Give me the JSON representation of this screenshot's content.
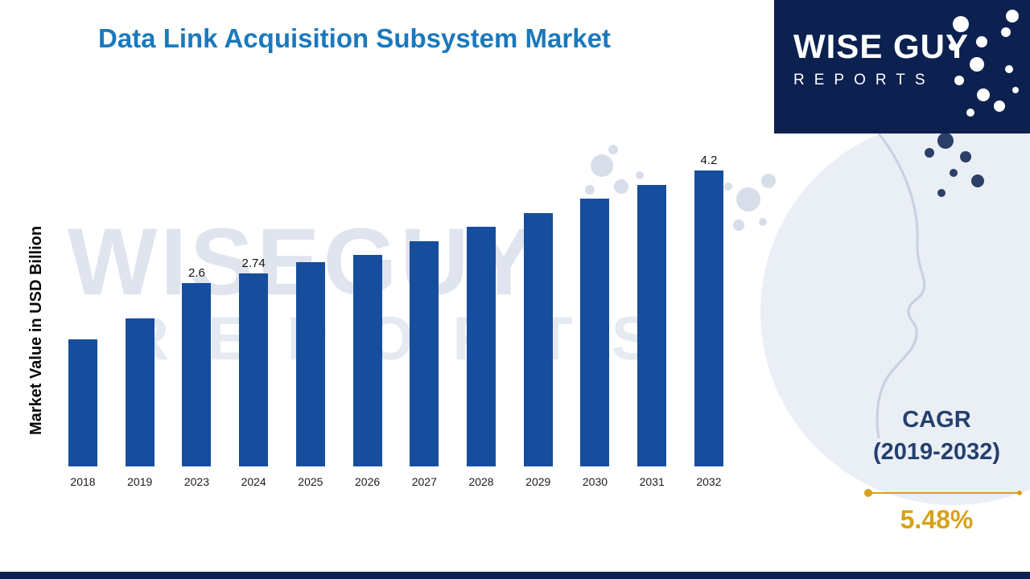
{
  "title": "Data Link Acquisition Subsystem Market",
  "ylabel": "Market Value in USD Billion",
  "brand": {
    "line1": "WISE GUY",
    "line2": "REPORTS"
  },
  "watermark": {
    "line1": "WISEGUY",
    "line2": "REPORTS"
  },
  "cagr": {
    "title": "CAGR",
    "range": "(2019-2032)",
    "value": "5.48%"
  },
  "colors": {
    "bar": "#164e9d",
    "title": "#1a79bd",
    "navy": "#0c2150",
    "gold": "#d7a219",
    "cagr": "#23406e",
    "wm1": "#dfe4ee",
    "wm2": "#e5e9f2"
  },
  "chart_data": {
    "type": "bar",
    "title": "Data Link Acquisition Subsystem Market",
    "xlabel": "",
    "ylabel": "Market Value in USD Billion",
    "categories": [
      "2018",
      "2019",
      "2023",
      "2024",
      "2025",
      "2026",
      "2027",
      "2028",
      "2029",
      "2030",
      "2031",
      "2032"
    ],
    "values": [
      1.8,
      2.1,
      2.6,
      2.74,
      2.9,
      3.0,
      3.2,
      3.4,
      3.6,
      3.8,
      4.0,
      4.2
    ],
    "bar_labels": [
      "",
      "",
      "2.6",
      "2.74",
      "",
      "",
      "",
      "",
      "",
      "",
      "",
      "4.2"
    ],
    "ylim": [
      0,
      4.4
    ],
    "grid": false,
    "legend": "none",
    "bar_color": "#164e9d",
    "unit": "USD Billion"
  }
}
